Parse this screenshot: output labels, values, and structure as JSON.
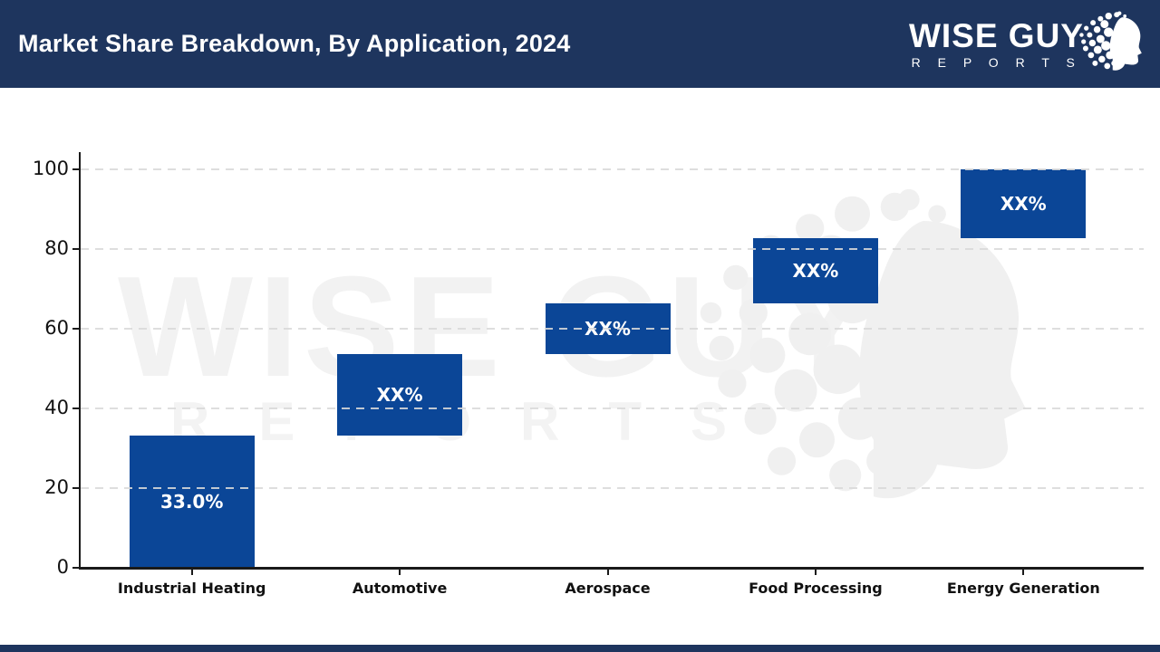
{
  "header": {
    "title": "Market Share Breakdown, By Application, 2024",
    "brand_name": "WISE GUY",
    "brand_sub": "R E P O R T S"
  },
  "watermark": {
    "line1": "WISE GUY",
    "line2": "REPORTS"
  },
  "colors": {
    "header_bg": "#1e355e",
    "bar": "#0b4697",
    "grid": "#d9d9d9",
    "axis": "#1a1a1a",
    "bar_label": "#ffffff",
    "footer_bg": "#1e355e"
  },
  "chart_data": {
    "type": "bar",
    "subtype": "waterfall",
    "title": "Market Share Breakdown, By Application, 2024",
    "categories": [
      "Industrial Heating",
      "Automotive",
      "Aerospace",
      "Food Processing",
      "Energy Generation"
    ],
    "segments": [
      {
        "category": "Industrial Heating",
        "start": 0,
        "end": 33,
        "label": "33.0%"
      },
      {
        "category": "Automotive",
        "start": 33,
        "end": 53.5,
        "label": "XX%"
      },
      {
        "category": "Aerospace",
        "start": 53.5,
        "end": 66.3,
        "label": "XX%"
      },
      {
        "category": "Food Processing",
        "start": 66.3,
        "end": 82.7,
        "label": "XX%"
      },
      {
        "category": "Energy Generation",
        "start": 82.7,
        "end": 100,
        "label": "XX%"
      }
    ],
    "yticks": [
      0,
      20,
      40,
      60,
      80,
      100
    ],
    "ylim": [
      0,
      104
    ],
    "xlabel": "",
    "ylabel": "",
    "grid": "horizontal-dashed",
    "legend": "none",
    "bar_value_labels_inside": true
  }
}
